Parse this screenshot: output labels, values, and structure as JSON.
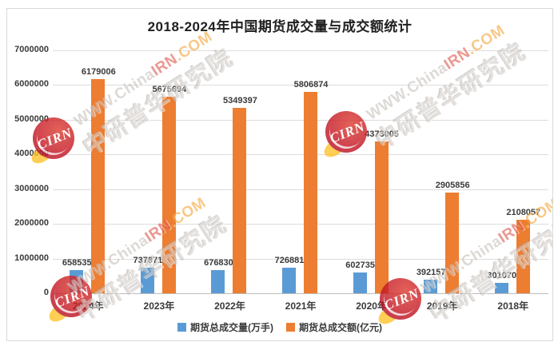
{
  "chart_data": {
    "type": "bar",
    "title": "2018-2024年中国期货成交量与成交额统计",
    "categories": [
      "2024年",
      "2023年",
      "2022年",
      "2021年",
      "2020年",
      "2019年",
      "2018年"
    ],
    "series": [
      {
        "name": "期货总成交量(万手)",
        "color": "#5B9BD5",
        "values": [
          658535,
          737871,
          676830,
          726881,
          602735,
          392157,
          301070
        ]
      },
      {
        "name": "期货总成交额(亿元)",
        "color": "#ED7D31",
        "values": [
          6179006,
          5675694,
          5349397,
          5806874,
          4373005,
          2905856,
          2108057
        ]
      }
    ],
    "ylim": [
      0,
      7000000
    ],
    "yticks": [
      0,
      1000000,
      2000000,
      3000000,
      4000000,
      5000000,
      6000000,
      7000000
    ],
    "grid": true,
    "legend_position": "bottom"
  },
  "colors": {
    "bar_label": "#3a3a3a",
    "gridline": "#dcdcdc",
    "watermark_red": "#c11222",
    "watermark_yellow": "#ffc32a"
  },
  "watermark": {
    "logo_text": "CIRN",
    "line1_prefix": "WWW.China",
    "line1_mid": "IRN",
    "line1_suffix": ".COM",
    "line2": "中研普华研究院"
  }
}
